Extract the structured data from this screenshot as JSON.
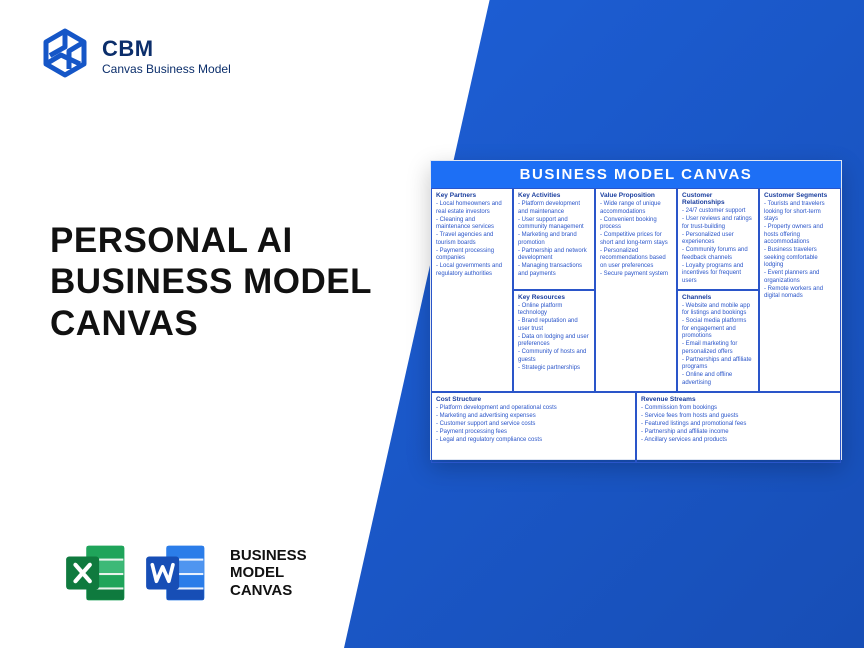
{
  "brand": {
    "abbr": "CBM",
    "sub": "Canvas Business Model",
    "logo_color": "#1556c7"
  },
  "headline": {
    "line1": "PERSONAL AI",
    "line2": "BUSINESS MODEL",
    "line3": "CANVAS"
  },
  "footer": {
    "label_line1": "BUSINESS",
    "label_line2": "MODEL",
    "label_line3": "CANVAS",
    "excel_color_dark": "#0f7a3e",
    "excel_color_light": "#1fa45a",
    "word_color_dark": "#174eb6",
    "word_color_light": "#2b7de9"
  },
  "canvas": {
    "title": "BUSINESS MODEL CANVAS",
    "title_bg": "#1d6ff5",
    "border_color": "#2a55c9",
    "text_color": "#2a55c9",
    "sections": {
      "key_partners": {
        "heading": "Key Partners",
        "items": [
          "Local homeowners and real estate investors",
          "Cleaning and maintenance services",
          "Travel agencies and tourism boards",
          "Payment processing companies",
          "Local governments and regulatory authorities"
        ]
      },
      "key_activities": {
        "heading": "Key Activities",
        "items": [
          "Platform development and maintenance",
          "User support and community management",
          "Marketing and brand promotion",
          "Partnership and network development",
          "Managing transactions and payments"
        ]
      },
      "key_resources": {
        "heading": "Key Resources",
        "items": [
          "Online platform technology",
          "Brand reputation and user trust",
          "Data on lodging and user preferences",
          "Community of hosts and guests",
          "Strategic partnerships"
        ]
      },
      "value_proposition": {
        "heading": "Value Proposition",
        "items": [
          "Wide range of unique accommodations",
          "Convenient booking process",
          "Competitive prices for short and long-term stays",
          "Personalized recommendations based on user preferences",
          "Secure payment system"
        ]
      },
      "customer_relationships": {
        "heading": "Customer Relationships",
        "items": [
          "24/7 customer support",
          "User reviews and ratings for trust-building",
          "Personalized user experiences",
          "Community forums and feedback channels",
          "Loyalty programs and incentives for frequent users"
        ]
      },
      "channels": {
        "heading": "Channels",
        "items": [
          "Website and mobile app for listings and bookings",
          "Social media platforms for engagement and promotions",
          "Email marketing for personalized offers",
          "Partnerships and affiliate programs",
          "Online and offline advertising"
        ]
      },
      "customer_segments": {
        "heading": "Customer Segments",
        "items": [
          "Tourists and travelers looking for short-term stays",
          "Property owners and hosts offering accommodations",
          "Business travelers seeking comfortable lodging",
          "Event planners and organizations",
          "Remote workers and digital nomads"
        ]
      },
      "cost_structure": {
        "heading": "Cost Structure",
        "items": [
          "Platform development and operational costs",
          "Marketing and advertising expenses",
          "Customer support and service costs",
          "Payment processing fees",
          "Legal and regulatory compliance costs"
        ]
      },
      "revenue_streams": {
        "heading": "Revenue Streams",
        "items": [
          "Commission from bookings",
          "Service fees from hosts and guests",
          "Featured listings and promotional fees",
          "Partnership and affiliate income",
          "Ancillary services and products"
        ]
      }
    }
  },
  "colors": {
    "bg_gradient_start": "#1d5fd6",
    "bg_gradient_end": "#174eb6"
  }
}
